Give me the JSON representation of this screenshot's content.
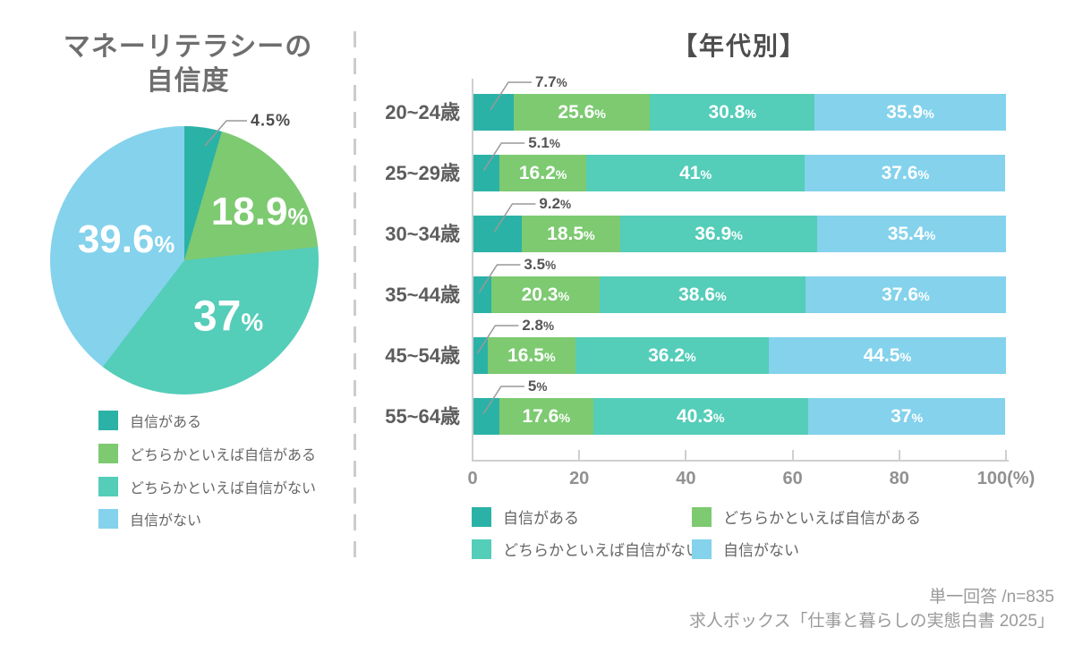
{
  "pie_chart": {
    "title_line1": "マネーリテラシーの",
    "title_line2": "自信度"
  },
  "bar_chart": {
    "title": "【年代別】"
  },
  "footer": {
    "line1": "単一回答 /n=835",
    "line2": "求人ボックス「仕事と暮らしの実態白書 2025」"
  },
  "chart_data": [
    {
      "type": "pie",
      "title": "マネーリテラシーの自信度",
      "labels": [
        "自信がある",
        "どちらかといえば自信がある",
        "どちらかといえば自信がない",
        "自信がない"
      ],
      "values": [
        4.5,
        18.9,
        37,
        39.6
      ],
      "display_labels": [
        "4.5%",
        "18.9%",
        "37%",
        "39.6%"
      ],
      "colors": [
        "#2bb2a7",
        "#7dca71",
        "#54cdb9",
        "#84d2ec"
      ],
      "start": "12-o-clock",
      "direction": "clockwise",
      "legend_position": "bottom-left"
    },
    {
      "type": "bar",
      "orientation": "horizontal-stacked",
      "title": "【年代別】",
      "categories": [
        "20~24歳",
        "25~29歳",
        "30~34歳",
        "35~44歳",
        "45~54歳",
        "55~64歳"
      ],
      "series": [
        {
          "name": "自信がある",
          "color": "#2bb2a7",
          "values": [
            7.7,
            5.1,
            9.2,
            3.5,
            2.8,
            5
          ]
        },
        {
          "name": "どちらかといえば自信がある",
          "color": "#7dca71",
          "values": [
            25.6,
            16.2,
            18.5,
            20.3,
            16.5,
            17.6
          ]
        },
        {
          "name": "どちらかといえば自信がない",
          "color": "#54cdb9",
          "values": [
            30.8,
            41,
            36.9,
            38.6,
            36.2,
            40.3
          ]
        },
        {
          "name": "自信がない",
          "color": "#84d2ec",
          "values": [
            35.9,
            37.6,
            35.4,
            37.6,
            44.5,
            37
          ]
        }
      ],
      "xlim": [
        0,
        100
      ],
      "x_ticks": [
        0,
        20,
        40,
        60,
        80,
        100
      ],
      "x_tick_labels": [
        "0",
        "20",
        "40",
        "60",
        "80",
        "100(%)"
      ],
      "grid": false,
      "legend_position": "bottom"
    }
  ]
}
